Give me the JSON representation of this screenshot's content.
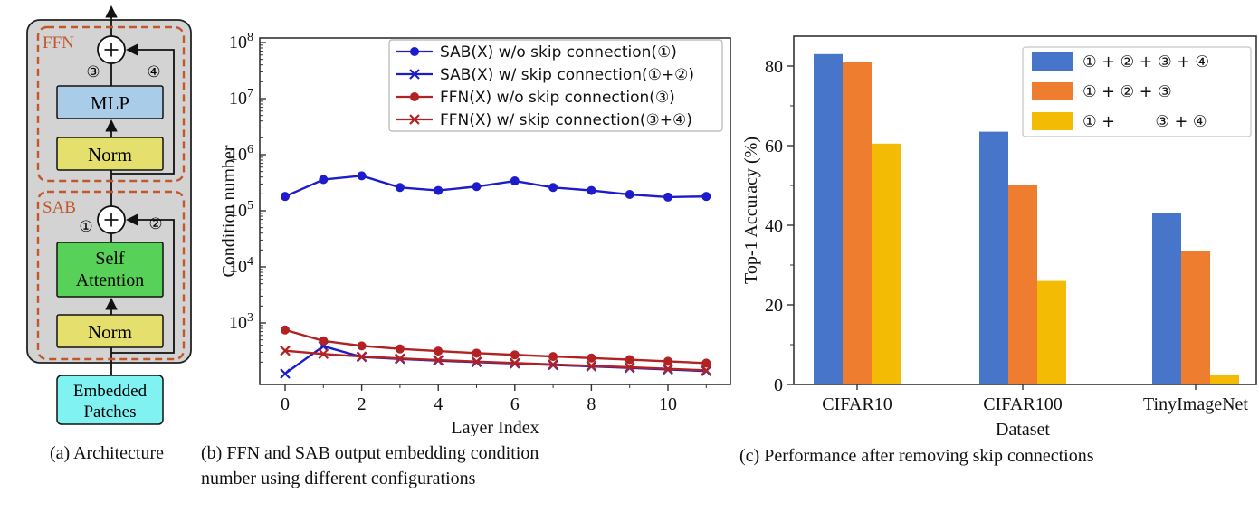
{
  "captions": {
    "a": "(a) Architecture",
    "b_line1": "(b) FFN and SAB output embedding condition",
    "b_line2": "number using different configurations",
    "c": "(c) Performance after removing skip connections"
  },
  "panel_a": {
    "ffn_label": "FFN",
    "sab_label": "SAB",
    "mlp_label": "MLP",
    "norm_label": "Norm",
    "attn_line1": "Self",
    "attn_line2": "Attention",
    "patches_line1": "Embedded",
    "patches_line2": "Patches",
    "num1": "①",
    "num2": "②",
    "num3": "③",
    "num4": "④",
    "colors": {
      "container_bg": "#d3d3d3",
      "dashed_border": "#c2572c",
      "mlp": "#a9cce9",
      "norm": "#e5df6e",
      "attention": "#58d158",
      "patches": "#80f2f2",
      "line": "#111111"
    }
  },
  "chart_data": [
    {
      "type": "line",
      "title": "",
      "xlabel": "Layer Index",
      "ylabel": "Condition number",
      "x": [
        0,
        1,
        2,
        3,
        4,
        5,
        6,
        7,
        8,
        9,
        10,
        11
      ],
      "xticks": [
        0,
        2,
        4,
        6,
        8,
        10
      ],
      "yscale": "log",
      "ylim": [
        80,
        100000000
      ],
      "ytick_exponents": [
        3,
        4,
        5,
        6,
        7,
        8
      ],
      "grid": false,
      "legend_position": "upper right",
      "series": [
        {
          "name": "SAB(X) w/o skip connection(①)",
          "color": "#1c1ccd",
          "marker": "circle",
          "values": [
            180000,
            360000,
            420000,
            260000,
            230000,
            270000,
            340000,
            260000,
            230000,
            195000,
            175000,
            180000
          ]
        },
        {
          "name": "SAB(X) w/ skip connection(①+②)",
          "color": "#1c1ccd",
          "marker": "x",
          "values": [
            125,
            385,
            248,
            228,
            213,
            200,
            189,
            178,
            168,
            158,
            148,
            139
          ]
        },
        {
          "name": "FFN(X) w/o skip connection(③)",
          "color": "#b22222",
          "marker": "circle",
          "values": [
            750,
            480,
            390,
            345,
            315,
            290,
            270,
            252,
            237,
            222,
            207,
            192
          ]
        },
        {
          "name": "FFN(X) w/ skip connection(③+④)",
          "color": "#b22222",
          "marker": "x",
          "values": [
            320,
            280,
            252,
            233,
            218,
            205,
            193,
            182,
            172,
            162,
            152,
            143
          ]
        }
      ]
    },
    {
      "type": "bar",
      "title": "",
      "xlabel": "Dataset",
      "ylabel": "Top-1 Accuracy (%)",
      "categories": [
        "CIFAR10",
        "CIFAR100",
        "TinyImageNet"
      ],
      "yticks": [
        0,
        20,
        40,
        60,
        80
      ],
      "ylim": [
        0,
        87.5
      ],
      "grid": false,
      "legend_position": "upper right",
      "series": [
        {
          "name": "① + ② + ③ + ④",
          "color": "#4775c9",
          "values": [
            83,
            63.5,
            43
          ]
        },
        {
          "name": "① + ② + ③",
          "color": "#ee7d2f",
          "values": [
            81,
            50,
            33.5
          ]
        },
        {
          "name": "① +        ③ + ④",
          "color": "#f3bb03",
          "values": [
            60.5,
            26,
            2.5
          ]
        }
      ]
    }
  ]
}
